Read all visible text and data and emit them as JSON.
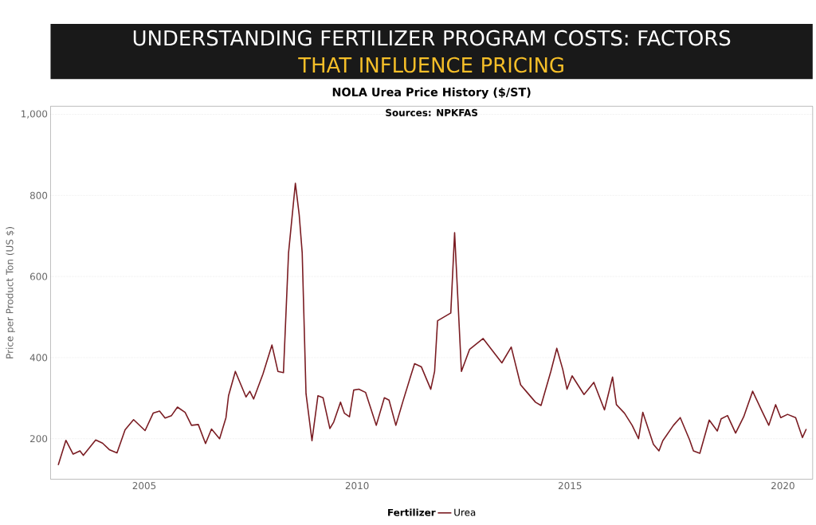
{
  "chart_data": {
    "type": "line",
    "title": "NOLA Urea Price History ($/ST)",
    "ylabel": "Price per Product Ton (US $)",
    "legend_title": "Fertilizer",
    "annotations": [
      "Sources: NPKFAS",
      "UNDERSTANDING FERTILIZER PROGRAM COSTS: FACTORS",
      "THAT INFLUENCE PRICING"
    ],
    "x": [
      2002.98,
      2003.16,
      2003.33,
      2003.49,
      2003.57,
      2003.86,
      2004.02,
      2004.18,
      2004.36,
      2004.55,
      2004.75,
      2005.02,
      2005.21,
      2005.36,
      2005.49,
      2005.64,
      2005.78,
      2005.96,
      2006.11,
      2006.27,
      2006.44,
      2006.58,
      2006.77,
      2006.92,
      2006.98,
      2007.14,
      2007.39,
      2007.48,
      2007.57,
      2007.79,
      2008.0,
      2008.14,
      2008.27,
      2008.39,
      2008.55,
      2008.64,
      2008.71,
      2008.8,
      2008.94,
      2009.08,
      2009.2,
      2009.36,
      2009.45,
      2009.61,
      2009.7,
      2009.82,
      2009.92,
      2010.04,
      2010.2,
      2010.45,
      2010.64,
      2010.75,
      2010.91,
      2011.07,
      2011.26,
      2011.35,
      2011.51,
      2011.73,
      2011.82,
      2011.89,
      2012.2,
      2012.29,
      2012.45,
      2012.64,
      2012.96,
      2013.4,
      2013.62,
      2013.84,
      2013.97,
      2014.19,
      2014.32,
      2014.55,
      2014.69,
      2014.83,
      2014.93,
      2015.05,
      2015.33,
      2015.56,
      2015.81,
      2016.0,
      2016.09,
      2016.28,
      2016.46,
      2016.61,
      2016.71,
      2016.96,
      2017.09,
      2017.18,
      2017.43,
      2017.59,
      2017.81,
      2017.9,
      2018.05,
      2018.27,
      2018.46,
      2018.55,
      2018.7,
      2018.89,
      2019.08,
      2019.29,
      2019.51,
      2019.67,
      2019.83,
      2019.95,
      2020.11,
      2020.3,
      2020.46,
      2020.55
    ],
    "series": [
      {
        "name": "Urea",
        "color": "#7a1c22",
        "values": [
          135,
          196,
          162,
          170,
          159,
          197,
          189,
          173,
          165,
          222,
          247,
          220,
          263,
          268,
          251,
          257,
          278,
          265,
          233,
          235,
          188,
          224,
          200,
          252,
          306,
          366,
          303,
          317,
          298,
          360,
          431,
          366,
          363,
          659,
          830,
          752,
          659,
          311,
          195,
          306,
          301,
          225,
          241,
          290,
          263,
          254,
          320,
          322,
          314,
          233,
          301,
          295,
          233,
          290,
          355,
          385,
          377,
          322,
          366,
          491,
          510,
          708,
          366,
          420,
          447,
          387,
          426,
          333,
          317,
          290,
          282,
          366,
          423,
          371,
          322,
          355,
          309,
          339,
          271,
          352,
          284,
          263,
          233,
          200,
          265,
          186,
          170,
          195,
          233,
          252,
          197,
          170,
          164,
          246,
          219,
          249,
          257,
          214,
          254,
          317,
          268,
          233,
          284,
          252,
          260,
          252,
          203,
          224
        ]
      }
    ],
    "xlim": [
      2002.8,
      2020.7
    ],
    "ylim": [
      100,
      1020
    ],
    "xticks": [
      2005,
      2010,
      2015,
      2020
    ],
    "yticks": [
      200,
      400,
      600,
      800,
      {
        "value": 1000,
        "label": "1,000"
      }
    ],
    "grid": "y",
    "legend": "bottom",
    "marker": "none",
    "line_style": "solid"
  }
}
